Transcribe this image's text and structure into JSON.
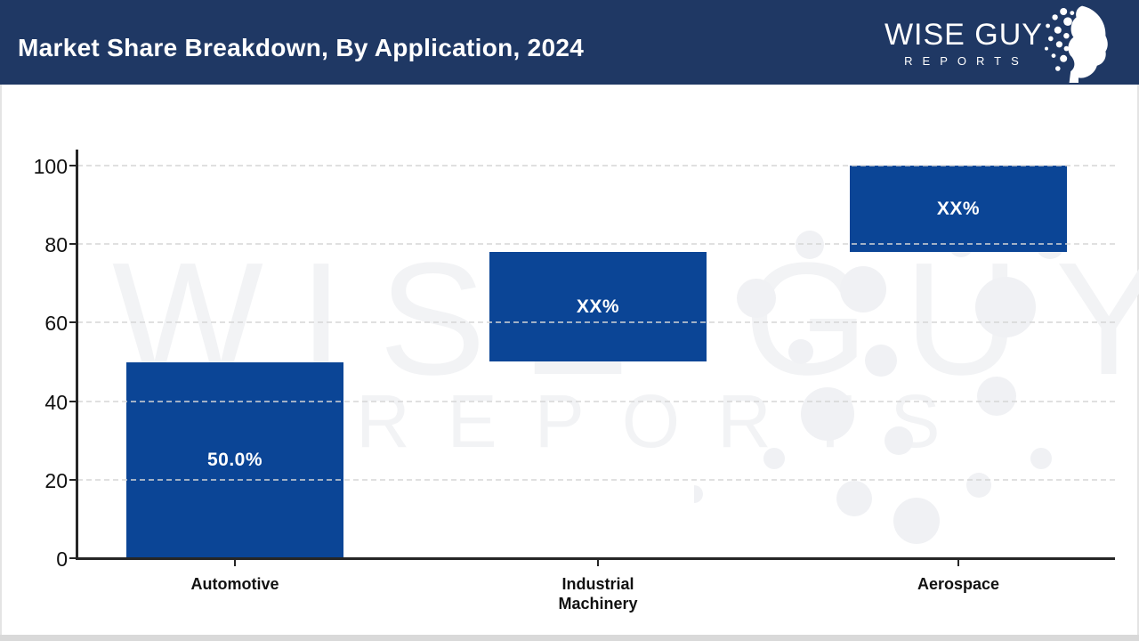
{
  "header": {
    "title": "Market Share Breakdown, By Application, 2024",
    "logo": {
      "name_top": "WISE GUY",
      "name_bottom": "REPORTS",
      "icon": "dotted-head-profile-icon"
    }
  },
  "watermark": {
    "line1": "WISE GUY",
    "line2": "REPORTS"
  },
  "chart_data": {
    "type": "bar",
    "subtype": "waterfall",
    "title": "Market Share Breakdown, By Application, 2024",
    "categories": [
      [
        "Automotive"
      ],
      [
        "Industrial",
        "Machinery"
      ],
      [
        "Aerospace"
      ]
    ],
    "series": [
      {
        "name": "Automotive",
        "start": 0,
        "end": 50,
        "label": "50.0%"
      },
      {
        "name": "Industrial Machinery",
        "start": 50,
        "end": 78,
        "label": "XX%"
      },
      {
        "name": "Aerospace",
        "start": 78,
        "end": 100,
        "label": "XX%"
      }
    ],
    "xlabel": "",
    "ylabel": "",
    "yticks": [
      0,
      20,
      40,
      60,
      80,
      100
    ],
    "ylim": [
      0,
      104
    ],
    "grid": true,
    "grid_style": "dashed",
    "legend": "none",
    "bar_color": "#0b4596",
    "value_label_color": "#ffffff",
    "axis_color": "#262626",
    "header_color": "#1f3864"
  }
}
